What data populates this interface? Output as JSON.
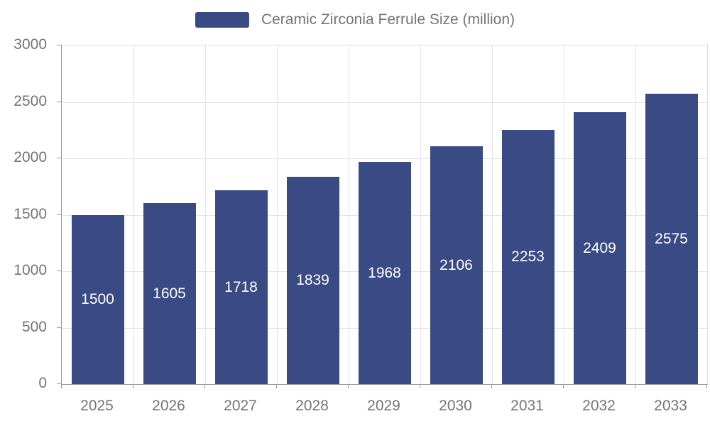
{
  "legend": {
    "label": "Ceramic Zirconia Ferrule Size (million)"
  },
  "chart_data": {
    "type": "bar",
    "title": "Ceramic Zirconia Ferrule Size (million)",
    "categories": [
      "2025",
      "2026",
      "2027",
      "2028",
      "2029",
      "2030",
      "2031",
      "2032",
      "2033"
    ],
    "series": [
      {
        "name": "Ceramic Zirconia Ferrule Size (million)",
        "values": [
          1500,
          1605,
          1718,
          1839,
          1968,
          2106,
          2253,
          2409,
          2575
        ]
      }
    ],
    "xlabel": "",
    "ylabel": "",
    "ylim": [
      0,
      3000
    ],
    "yticks": [
      0,
      500,
      1000,
      1500,
      2000,
      2500,
      3000
    ],
    "grid": true,
    "legend_position": "top-center",
    "colors": {
      "bar": "#394a84",
      "bar_value_text": "#ffffff",
      "axis_line": "#999999",
      "gridline": "#e3e3e3",
      "axis_text": "#757575",
      "legend_text": "#757575",
      "background": "#ffffff"
    }
  }
}
